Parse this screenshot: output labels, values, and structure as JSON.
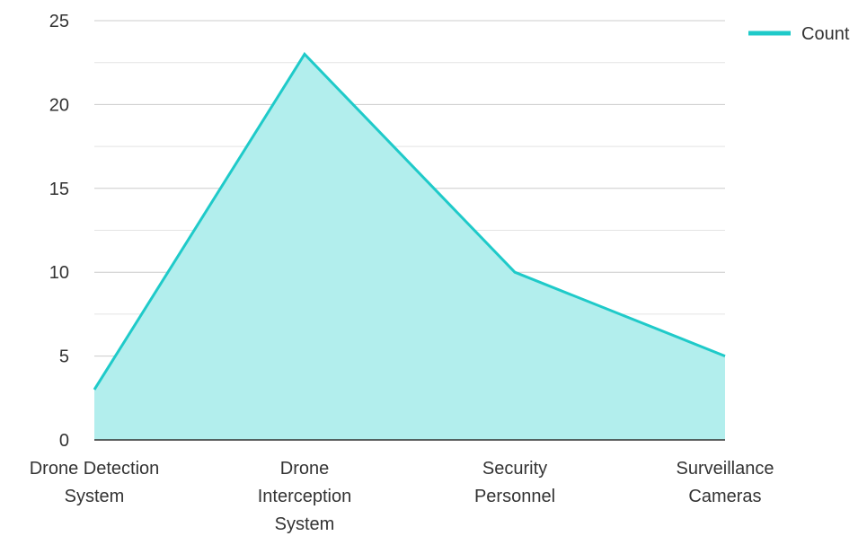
{
  "chart_data": {
    "type": "area",
    "categories": [
      [
        "Drone Detection",
        "System"
      ],
      [
        "Drone",
        "Interception",
        "System"
      ],
      [
        "Security",
        "Personnel"
      ],
      [
        "Surveillance",
        "Cameras"
      ]
    ],
    "series": [
      {
        "name": "Count",
        "values": [
          3,
          23,
          10,
          5
        ]
      }
    ],
    "ylim": [
      0,
      25
    ],
    "yticks": [
      0,
      5,
      10,
      15,
      20,
      25
    ],
    "grid": true,
    "legend_position": "top-right",
    "colors": {
      "line": "#1fcac9",
      "fill": "#b2eeed",
      "grid": "#cccccc",
      "minor_grid": "#e4e4e4",
      "axis": "#333333"
    }
  }
}
